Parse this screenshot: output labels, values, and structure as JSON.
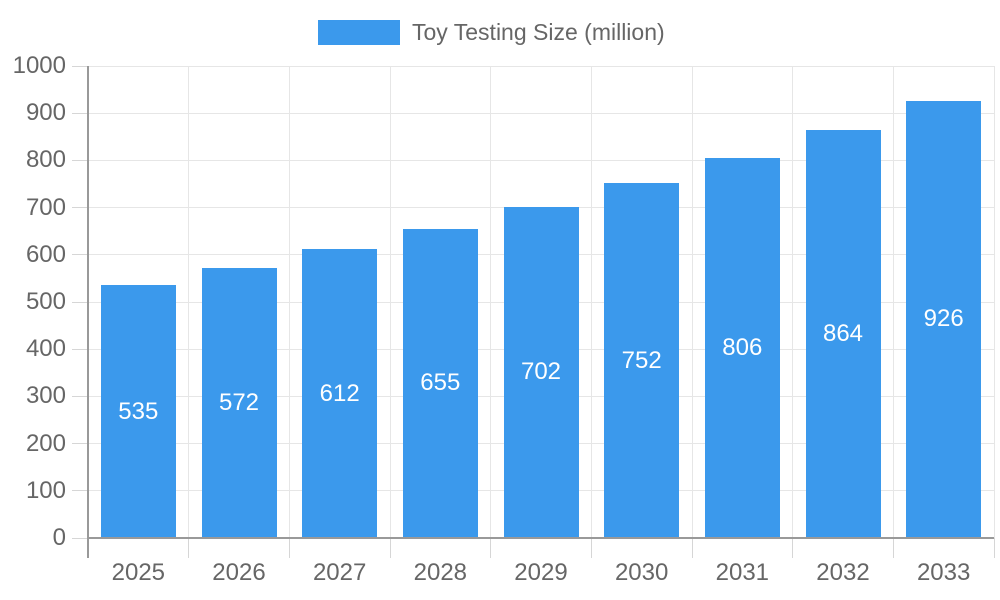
{
  "chart_data": {
    "type": "bar",
    "title": "Toy Testing Size (million)",
    "categories": [
      "2025",
      "2026",
      "2027",
      "2028",
      "2029",
      "2030",
      "2031",
      "2032",
      "2033"
    ],
    "series": [
      {
        "name": "Toy Testing Size (million)",
        "values": [
          535,
          572,
          612,
          655,
          702,
          752,
          806,
          864,
          926
        ]
      }
    ],
    "xlabel": "",
    "ylabel": "",
    "ylim": [
      0,
      1000
    ],
    "yticks": [
      0,
      100,
      200,
      300,
      400,
      500,
      600,
      700,
      800,
      900,
      1000
    ],
    "grid": true,
    "legend_position": "top",
    "value_labels_shown": true
  },
  "legend": {
    "label": "Toy Testing Size (million)",
    "swatch_color": "#3B99EC"
  },
  "colors": {
    "bar": "#3B99EC",
    "bar_value_text": "#FFFFFF",
    "axis_text": "#666666",
    "gridline": "#E6E6E6",
    "axis_line": "#999999",
    "tick": "#D6D6D6",
    "background": "#FFFFFF"
  }
}
